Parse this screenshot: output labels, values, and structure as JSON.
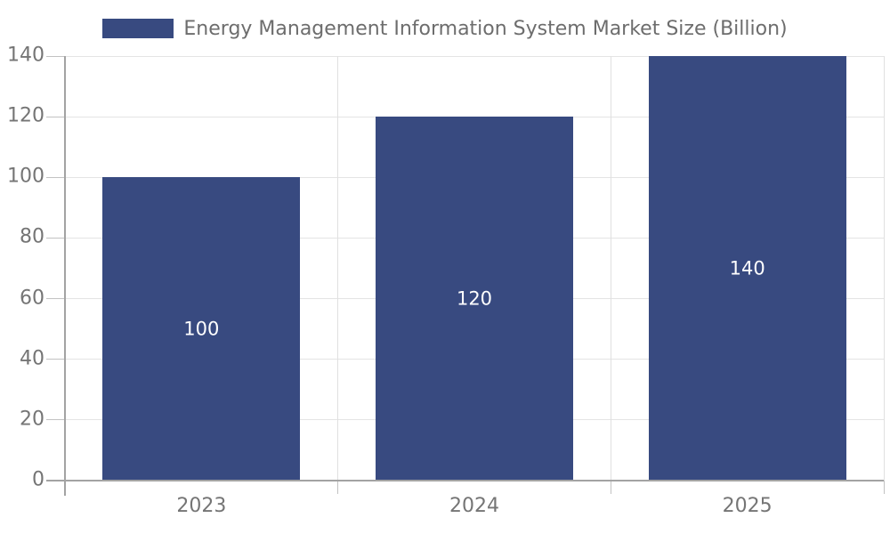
{
  "chart_data": {
    "type": "bar",
    "title": "Energy Management Information System Market Size (Billion)",
    "categories": [
      "2023",
      "2024",
      "2025"
    ],
    "values": [
      100,
      120,
      140
    ],
    "bar_value_labels": [
      "100",
      "120",
      "140"
    ],
    "xlabel": "",
    "ylabel": "",
    "ylim": [
      0,
      140
    ],
    "yticks": [
      0,
      20,
      40,
      60,
      80,
      100,
      120,
      140
    ],
    "legend_position": "top-center",
    "grid": true,
    "colors": {
      "bar": "#384a80",
      "bar_label": "#ffffff",
      "gridline": "#e4e4e4",
      "divider": "#e0e0e0",
      "axis_line": "#a3a3a3",
      "tick_mark": "#c2c2c2",
      "tick_label": "#757575",
      "legend_text": "#6d6d6d",
      "background": "#ffffff"
    }
  }
}
